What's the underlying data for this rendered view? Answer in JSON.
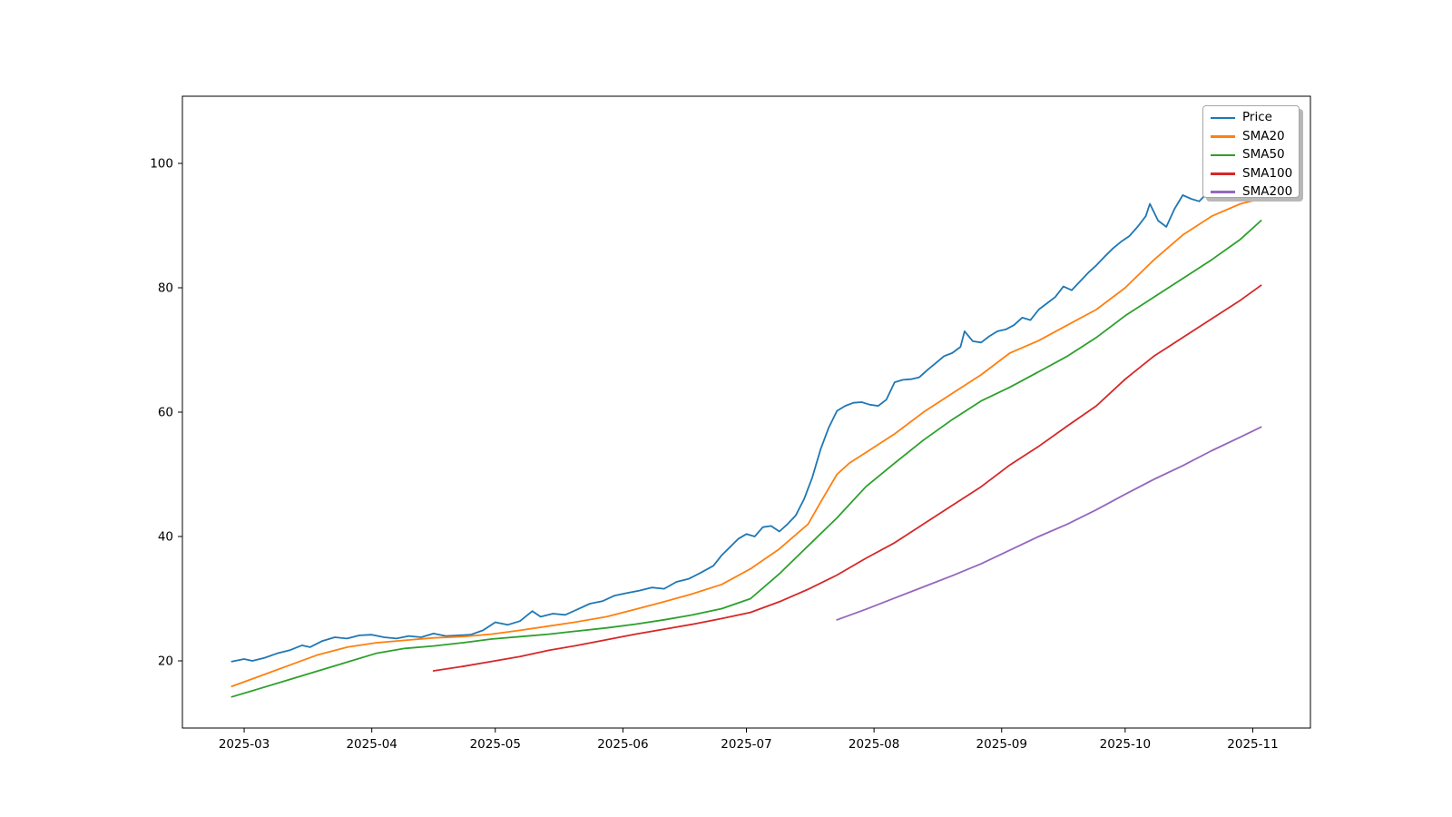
{
  "figure": {
    "background": "#ffffff",
    "text_color": "#000000",
    "spine_color": "#000000"
  },
  "legend": {
    "position": "upper right",
    "entries": [
      {
        "label": "Price",
        "color": "#1f77b4"
      },
      {
        "label": "SMA20",
        "color": "#ff7f0e"
      },
      {
        "label": "SMA50",
        "color": "#2ca02c"
      },
      {
        "label": "SMA100",
        "color": "#d62728"
      },
      {
        "label": "SMA200",
        "color": "#9467bd"
      }
    ]
  },
  "chart_data": {
    "type": "line",
    "title": "",
    "xlabel": "",
    "ylabel": "",
    "grid": false,
    "legend_position": "upper right",
    "x_tick_labels": [
      "2025-03",
      "2025-04",
      "2025-05",
      "2025-06",
      "2025-07",
      "2025-08",
      "2025-09",
      "2025-10",
      "2025-11"
    ],
    "y_tick_labels": [
      20,
      40,
      60,
      80,
      100
    ],
    "xlim": [
      "2025-02-14",
      "2025-11-15"
    ],
    "ylim": [
      9.2,
      110.8
    ],
    "series": [
      {
        "name": "Price",
        "color": "#1f77b4",
        "points": [
          [
            "2025-02-26",
            19.9
          ],
          [
            "2025-03-01",
            20.3
          ],
          [
            "2025-03-03",
            20.0
          ],
          [
            "2025-03-06",
            20.5
          ],
          [
            "2025-03-09",
            21.2
          ],
          [
            "2025-03-12",
            21.7
          ],
          [
            "2025-03-15",
            22.5
          ],
          [
            "2025-03-17",
            22.2
          ],
          [
            "2025-03-20",
            23.2
          ],
          [
            "2025-03-23",
            23.8
          ],
          [
            "2025-03-26",
            23.6
          ],
          [
            "2025-03-29",
            24.1
          ],
          [
            "2025-04-01",
            24.2
          ],
          [
            "2025-04-04",
            23.8
          ],
          [
            "2025-04-07",
            23.6
          ],
          [
            "2025-04-10",
            24.0
          ],
          [
            "2025-04-13",
            23.8
          ],
          [
            "2025-04-16",
            24.4
          ],
          [
            "2025-04-19",
            24.0
          ],
          [
            "2025-04-22",
            24.1
          ],
          [
            "2025-04-25",
            24.2
          ],
          [
            "2025-04-28",
            24.9
          ],
          [
            "2025-05-01",
            26.2
          ],
          [
            "2025-05-04",
            25.8
          ],
          [
            "2025-05-07",
            26.4
          ],
          [
            "2025-05-10",
            28.0
          ],
          [
            "2025-05-12",
            27.1
          ],
          [
            "2025-05-15",
            27.6
          ],
          [
            "2025-05-18",
            27.4
          ],
          [
            "2025-05-21",
            28.3
          ],
          [
            "2025-05-24",
            29.2
          ],
          [
            "2025-05-27",
            29.6
          ],
          [
            "2025-05-30",
            30.5
          ],
          [
            "2025-06-02",
            30.9
          ],
          [
            "2025-06-05",
            31.3
          ],
          [
            "2025-06-08",
            31.8
          ],
          [
            "2025-06-11",
            31.6
          ],
          [
            "2025-06-14",
            32.7
          ],
          [
            "2025-06-17",
            33.2
          ],
          [
            "2025-06-20",
            34.2
          ],
          [
            "2025-06-23",
            35.3
          ],
          [
            "2025-06-25",
            37.0
          ],
          [
            "2025-06-27",
            38.3
          ],
          [
            "2025-06-29",
            39.6
          ],
          [
            "2025-07-01",
            40.4
          ],
          [
            "2025-07-03",
            40.0
          ],
          [
            "2025-07-05",
            41.5
          ],
          [
            "2025-07-07",
            41.7
          ],
          [
            "2025-07-09",
            40.8
          ],
          [
            "2025-07-11",
            42.0
          ],
          [
            "2025-07-13",
            43.4
          ],
          [
            "2025-07-15",
            46.0
          ],
          [
            "2025-07-17",
            49.5
          ],
          [
            "2025-07-19",
            54.0
          ],
          [
            "2025-07-21",
            57.5
          ],
          [
            "2025-07-23",
            60.2
          ],
          [
            "2025-07-25",
            61.0
          ],
          [
            "2025-07-27",
            61.5
          ],
          [
            "2025-07-29",
            61.6
          ],
          [
            "2025-07-31",
            61.2
          ],
          [
            "2025-08-02",
            61.0
          ],
          [
            "2025-08-04",
            62.0
          ],
          [
            "2025-08-06",
            64.8
          ],
          [
            "2025-08-08",
            65.2
          ],
          [
            "2025-08-10",
            65.3
          ],
          [
            "2025-08-12",
            65.6
          ],
          [
            "2025-08-14",
            66.8
          ],
          [
            "2025-08-16",
            67.9
          ],
          [
            "2025-08-18",
            69.0
          ],
          [
            "2025-08-20",
            69.5
          ],
          [
            "2025-08-22",
            70.5
          ],
          [
            "2025-08-23",
            73.0
          ],
          [
            "2025-08-25",
            71.4
          ],
          [
            "2025-08-27",
            71.2
          ],
          [
            "2025-08-29",
            72.2
          ],
          [
            "2025-08-31",
            73.0
          ],
          [
            "2025-09-02",
            73.3
          ],
          [
            "2025-09-04",
            74.0
          ],
          [
            "2025-09-06",
            75.2
          ],
          [
            "2025-09-08",
            74.8
          ],
          [
            "2025-09-10",
            76.5
          ],
          [
            "2025-09-12",
            77.5
          ],
          [
            "2025-09-14",
            78.5
          ],
          [
            "2025-09-16",
            80.2
          ],
          [
            "2025-09-18",
            79.6
          ],
          [
            "2025-09-20",
            81.0
          ],
          [
            "2025-09-22",
            82.4
          ],
          [
            "2025-09-24",
            83.6
          ],
          [
            "2025-09-26",
            85.0
          ],
          [
            "2025-09-28",
            86.3
          ],
          [
            "2025-09-30",
            87.4
          ],
          [
            "2025-10-02",
            88.3
          ],
          [
            "2025-10-04",
            89.8
          ],
          [
            "2025-10-06",
            91.5
          ],
          [
            "2025-10-07",
            93.5
          ],
          [
            "2025-10-09",
            90.8
          ],
          [
            "2025-10-11",
            89.8
          ],
          [
            "2025-10-13",
            92.7
          ],
          [
            "2025-10-15",
            94.9
          ],
          [
            "2025-10-17",
            94.3
          ],
          [
            "2025-10-19",
            93.9
          ],
          [
            "2025-10-21",
            95.3
          ],
          [
            "2025-10-23",
            94.6
          ],
          [
            "2025-10-25",
            95.8
          ],
          [
            "2025-10-27",
            95.0
          ],
          [
            "2025-10-29",
            95.4
          ],
          [
            "2025-10-31",
            94.9
          ],
          [
            "2025-11-03",
            95.7
          ]
        ]
      },
      {
        "name": "SMA20",
        "color": "#ff7f0e",
        "points": [
          [
            "2025-02-26",
            15.9
          ],
          [
            "2025-03-05",
            17.6
          ],
          [
            "2025-03-12",
            19.3
          ],
          [
            "2025-03-19",
            21.0
          ],
          [
            "2025-03-26",
            22.2
          ],
          [
            "2025-04-02",
            22.9
          ],
          [
            "2025-04-09",
            23.3
          ],
          [
            "2025-04-16",
            23.7
          ],
          [
            "2025-04-23",
            23.9
          ],
          [
            "2025-04-30",
            24.3
          ],
          [
            "2025-05-07",
            24.9
          ],
          [
            "2025-05-14",
            25.6
          ],
          [
            "2025-05-21",
            26.3
          ],
          [
            "2025-05-28",
            27.1
          ],
          [
            "2025-06-04",
            28.3
          ],
          [
            "2025-06-11",
            29.5
          ],
          [
            "2025-06-18",
            30.8
          ],
          [
            "2025-06-25",
            32.3
          ],
          [
            "2025-07-02",
            34.8
          ],
          [
            "2025-07-09",
            38.0
          ],
          [
            "2025-07-16",
            42.0
          ],
          [
            "2025-07-19",
            45.5
          ],
          [
            "2025-07-23",
            50.0
          ],
          [
            "2025-07-26",
            51.8
          ],
          [
            "2025-07-30",
            53.5
          ],
          [
            "2025-08-06",
            56.5
          ],
          [
            "2025-08-13",
            60.0
          ],
          [
            "2025-08-20",
            63.0
          ],
          [
            "2025-08-27",
            66.0
          ],
          [
            "2025-09-03",
            69.5
          ],
          [
            "2025-09-10",
            71.5
          ],
          [
            "2025-09-17",
            74.0
          ],
          [
            "2025-09-24",
            76.5
          ],
          [
            "2025-10-01",
            80.0
          ],
          [
            "2025-10-08",
            84.5
          ],
          [
            "2025-10-15",
            88.5
          ],
          [
            "2025-10-22",
            91.5
          ],
          [
            "2025-10-29",
            93.5
          ],
          [
            "2025-11-03",
            94.3
          ]
        ]
      },
      {
        "name": "SMA50",
        "color": "#2ca02c",
        "points": [
          [
            "2025-02-26",
            14.2
          ],
          [
            "2025-03-05",
            15.6
          ],
          [
            "2025-03-12",
            17.0
          ],
          [
            "2025-03-19",
            18.4
          ],
          [
            "2025-03-26",
            19.8
          ],
          [
            "2025-04-02",
            21.2
          ],
          [
            "2025-04-09",
            22.0
          ],
          [
            "2025-04-16",
            22.4
          ],
          [
            "2025-04-23",
            22.9
          ],
          [
            "2025-04-30",
            23.5
          ],
          [
            "2025-05-07",
            23.9
          ],
          [
            "2025-05-14",
            24.3
          ],
          [
            "2025-05-21",
            24.8
          ],
          [
            "2025-05-28",
            25.3
          ],
          [
            "2025-06-04",
            25.9
          ],
          [
            "2025-06-11",
            26.6
          ],
          [
            "2025-06-18",
            27.4
          ],
          [
            "2025-06-25",
            28.4
          ],
          [
            "2025-07-02",
            30.0
          ],
          [
            "2025-07-09",
            34.0
          ],
          [
            "2025-07-16",
            38.5
          ],
          [
            "2025-07-23",
            43.0
          ],
          [
            "2025-07-30",
            48.0
          ],
          [
            "2025-08-06",
            51.8
          ],
          [
            "2025-08-13",
            55.5
          ],
          [
            "2025-08-20",
            58.8
          ],
          [
            "2025-08-27",
            61.8
          ],
          [
            "2025-09-03",
            64.0
          ],
          [
            "2025-09-10",
            66.5
          ],
          [
            "2025-09-17",
            69.0
          ],
          [
            "2025-09-24",
            72.0
          ],
          [
            "2025-10-01",
            75.5
          ],
          [
            "2025-10-08",
            78.5
          ],
          [
            "2025-10-15",
            81.5
          ],
          [
            "2025-10-22",
            84.5
          ],
          [
            "2025-10-29",
            87.8
          ],
          [
            "2025-11-03",
            90.8
          ]
        ]
      },
      {
        "name": "SMA100",
        "color": "#d62728",
        "points": [
          [
            "2025-04-16",
            18.4
          ],
          [
            "2025-04-23",
            19.1
          ],
          [
            "2025-04-30",
            19.9
          ],
          [
            "2025-05-07",
            20.7
          ],
          [
            "2025-05-14",
            21.7
          ],
          [
            "2025-05-21",
            22.5
          ],
          [
            "2025-05-28",
            23.4
          ],
          [
            "2025-06-04",
            24.3
          ],
          [
            "2025-06-11",
            25.1
          ],
          [
            "2025-06-18",
            25.9
          ],
          [
            "2025-06-25",
            26.8
          ],
          [
            "2025-07-02",
            27.8
          ],
          [
            "2025-07-09",
            29.5
          ],
          [
            "2025-07-16",
            31.5
          ],
          [
            "2025-07-23",
            33.8
          ],
          [
            "2025-07-30",
            36.5
          ],
          [
            "2025-08-06",
            39.0
          ],
          [
            "2025-08-13",
            42.0
          ],
          [
            "2025-08-20",
            45.0
          ],
          [
            "2025-08-27",
            48.0
          ],
          [
            "2025-09-03",
            51.5
          ],
          [
            "2025-09-10",
            54.5
          ],
          [
            "2025-09-17",
            57.8
          ],
          [
            "2025-09-24",
            61.0
          ],
          [
            "2025-10-01",
            65.3
          ],
          [
            "2025-10-08",
            69.0
          ],
          [
            "2025-10-15",
            72.0
          ],
          [
            "2025-10-22",
            75.0
          ],
          [
            "2025-10-29",
            78.0
          ],
          [
            "2025-11-03",
            80.4
          ]
        ]
      },
      {
        "name": "SMA200",
        "color": "#9467bd",
        "points": [
          [
            "2025-07-23",
            26.6
          ],
          [
            "2025-07-30",
            28.3
          ],
          [
            "2025-08-06",
            30.1
          ],
          [
            "2025-08-13",
            31.9
          ],
          [
            "2025-08-20",
            33.7
          ],
          [
            "2025-08-27",
            35.6
          ],
          [
            "2025-09-03",
            37.8
          ],
          [
            "2025-09-10",
            40.0
          ],
          [
            "2025-09-17",
            42.0
          ],
          [
            "2025-09-24",
            44.3
          ],
          [
            "2025-10-01",
            46.8
          ],
          [
            "2025-10-08",
            49.2
          ],
          [
            "2025-10-15",
            51.4
          ],
          [
            "2025-10-22",
            53.8
          ],
          [
            "2025-10-29",
            56.0
          ],
          [
            "2025-11-03",
            57.6
          ]
        ]
      }
    ]
  }
}
